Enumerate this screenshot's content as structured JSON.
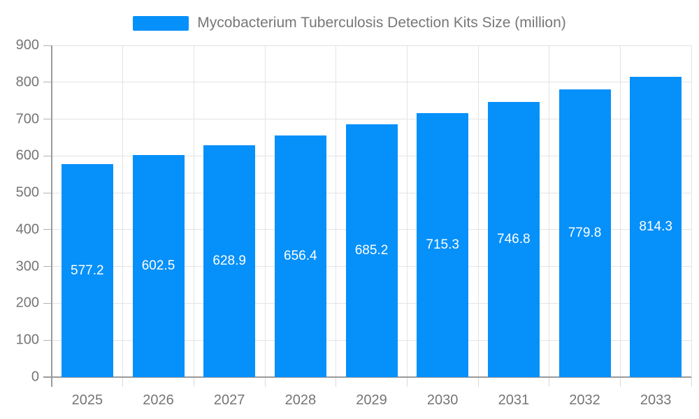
{
  "chart_data": {
    "type": "bar",
    "title": "Mycobacterium Tuberculosis Detection Kits Size (million)",
    "categories": [
      "2025",
      "2026",
      "2027",
      "2028",
      "2029",
      "2030",
      "2031",
      "2032",
      "2033"
    ],
    "values": [
      577.2,
      602.5,
      628.9,
      656.4,
      685.2,
      715.3,
      746.8,
      779.8,
      814.3
    ],
    "value_labels": [
      "577.2",
      "602.5",
      "628.9",
      "656.4",
      "685.2",
      "715.3",
      "746.8",
      "779.8",
      "814.3"
    ],
    "xlabel": "",
    "ylabel": "",
    "ylim": [
      0,
      900
    ],
    "y_ticks": [
      0,
      100,
      200,
      300,
      400,
      500,
      600,
      700,
      800,
      900
    ],
    "grid": "both",
    "legend_position": "top-center",
    "colors": {
      "bar": "#0690fa",
      "grid": "#e3e3e3",
      "axis": "#9a9a9a",
      "x_tick": "#d9d9d9",
      "y_tick": "#b3b3b3",
      "tick_text": "#757575",
      "legend_text": "#777777",
      "bar_label_text": "#ffffff",
      "background": "#ffffff"
    }
  }
}
